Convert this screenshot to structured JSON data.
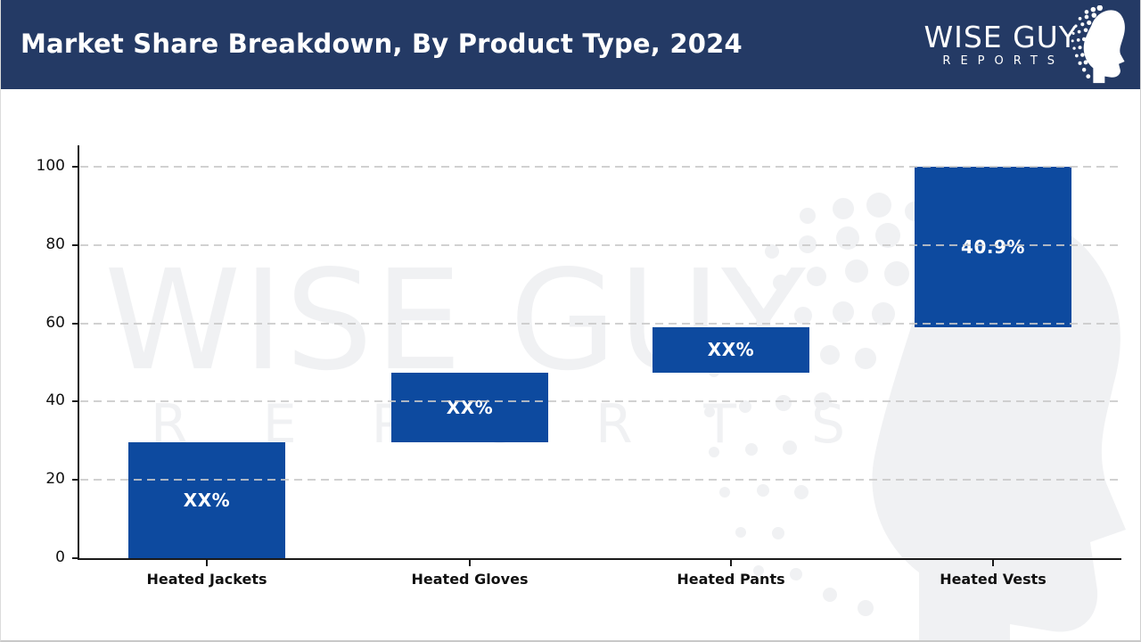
{
  "header": {
    "title": "Market Share Breakdown, By Product Type, 2024",
    "logo": {
      "wordmark": "WISE GUY",
      "subtext": "REPORTS"
    }
  },
  "watermark": {
    "wordmark": "WISE GUY",
    "subtext": "REPORTS"
  },
  "chart_data": {
    "type": "bar",
    "subtype": "floating-waterfall",
    "title": "Market Share Breakdown, By Product Type, 2024",
    "categories": [
      "Heated Jackets",
      "Heated Gloves",
      "Heated Pants",
      "Heated Vests"
    ],
    "bars": [
      {
        "category": "Heated Jackets",
        "start": 0,
        "end": 29.5,
        "label": "XX%"
      },
      {
        "category": "Heated Gloves",
        "start": 29.5,
        "end": 47.3,
        "label": "XX%"
      },
      {
        "category": "Heated Pants",
        "start": 47.3,
        "end": 59.1,
        "label": "XX%"
      },
      {
        "category": "Heated Vests",
        "start": 59.1,
        "end": 100,
        "label": "40.9%"
      }
    ],
    "xlabel": "",
    "ylabel": "",
    "ylim": [
      0,
      105.5
    ],
    "yticks": [
      0,
      20,
      40,
      60,
      80,
      100
    ],
    "grid": {
      "axis": "y",
      "style": "dashed",
      "drawn_over_bars": true
    },
    "legend": null,
    "colors": {
      "bar": "#0d4a9f",
      "bar_label": "#ffffff",
      "grid": "#c9c9c9",
      "axis": "#1a1a1a",
      "tick_label": "#111111",
      "header_bg": "#243a65",
      "header_text": "#ffffff",
      "watermark": "#f0f1f3"
    }
  }
}
